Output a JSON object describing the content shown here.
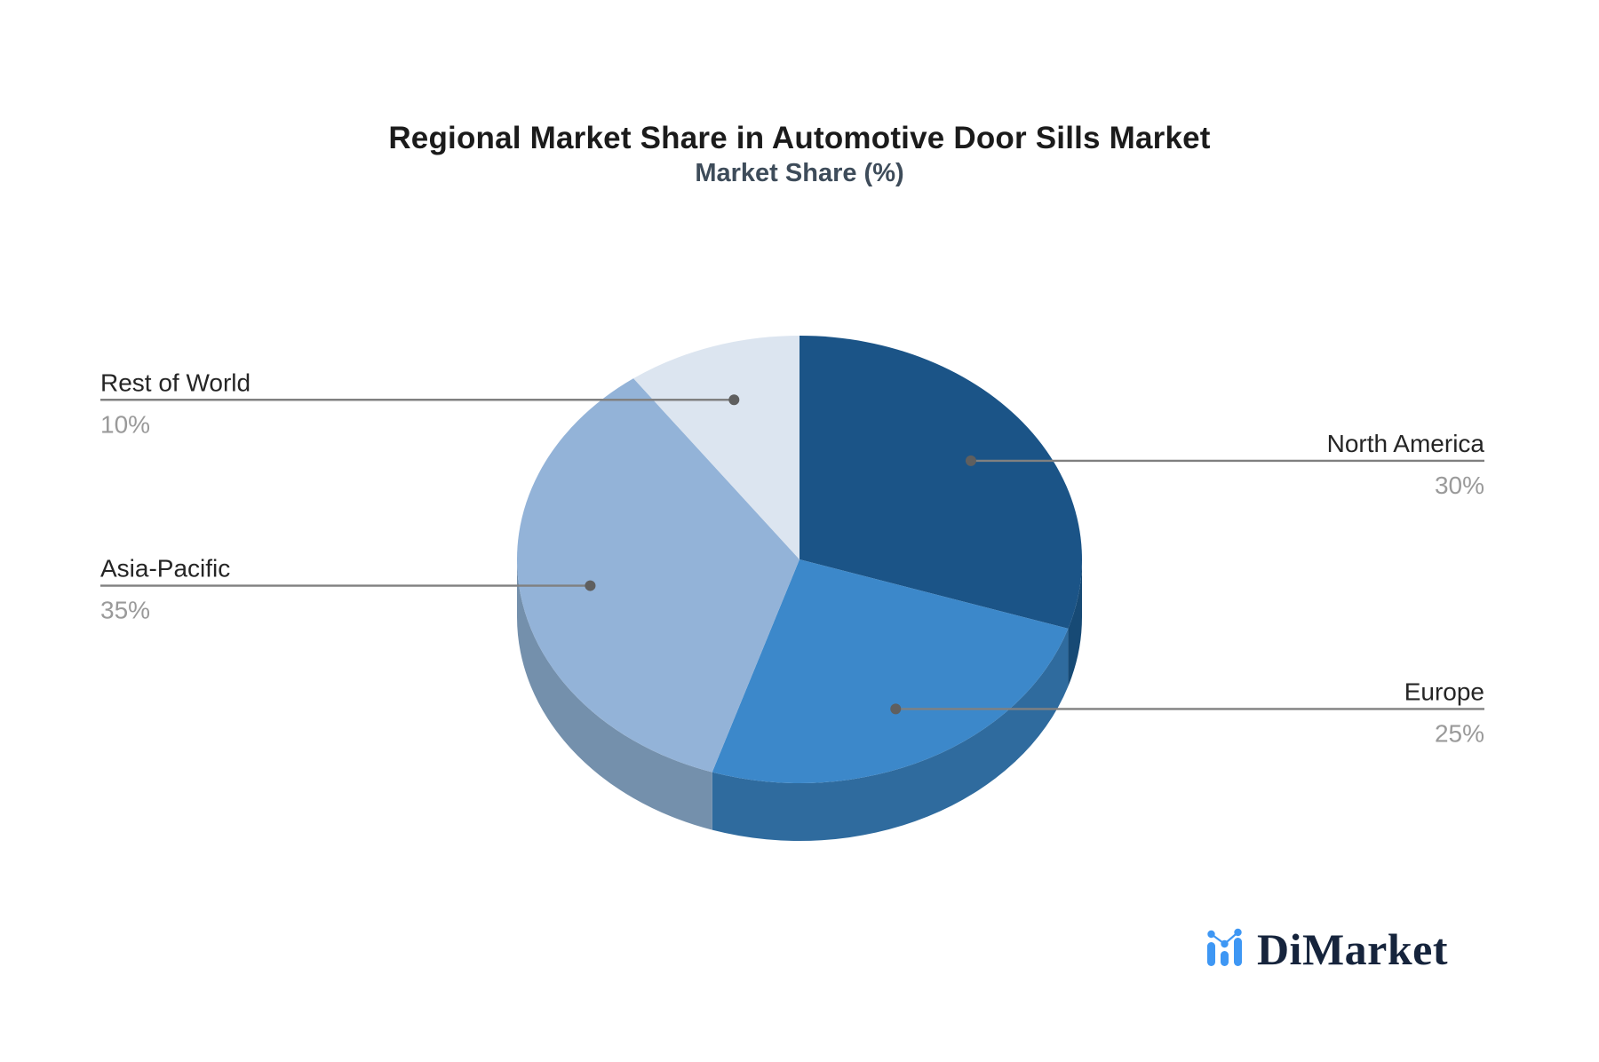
{
  "chart_data": {
    "type": "pie",
    "title": "Regional Market Share in Automotive Door Sills Market",
    "subtitle": "Market Share (%)",
    "unit": "%",
    "direction": "clockwise",
    "start_angle": "12-o-clock",
    "legend": "none (leader-line labels)",
    "slices": [
      {
        "label": "North America",
        "value": 30,
        "pct_label": "30%",
        "color": "#1B5487",
        "side_color": "#174A75"
      },
      {
        "label": "Europe",
        "value": 25,
        "pct_label": "25%",
        "color": "#3C88CA",
        "side_color": "#2F6B9E"
      },
      {
        "label": "Asia-Pacific",
        "value": 35,
        "pct_label": "35%",
        "color": "#93B3D8",
        "side_color": "#7490AC"
      },
      {
        "label": "Rest of World",
        "value": 10,
        "pct_label": "10%",
        "color": "#DCE5F0",
        "side_color": "#AEBDD0"
      }
    ],
    "colors": {
      "title_color": "#1B1B1B",
      "subtitle_color": "#3E4C5A",
      "label_color": "#252525",
      "pct_color": "#9A9A9A",
      "leader_line_color": "#808080",
      "leader_dot_color": "#5F5F5F",
      "background": "#FFFFFF"
    }
  },
  "logo": {
    "text": "DiMarket",
    "icon": "bar-chart-logo-icon",
    "icon_color": "#3E97F4",
    "text_color": "#16243C"
  }
}
